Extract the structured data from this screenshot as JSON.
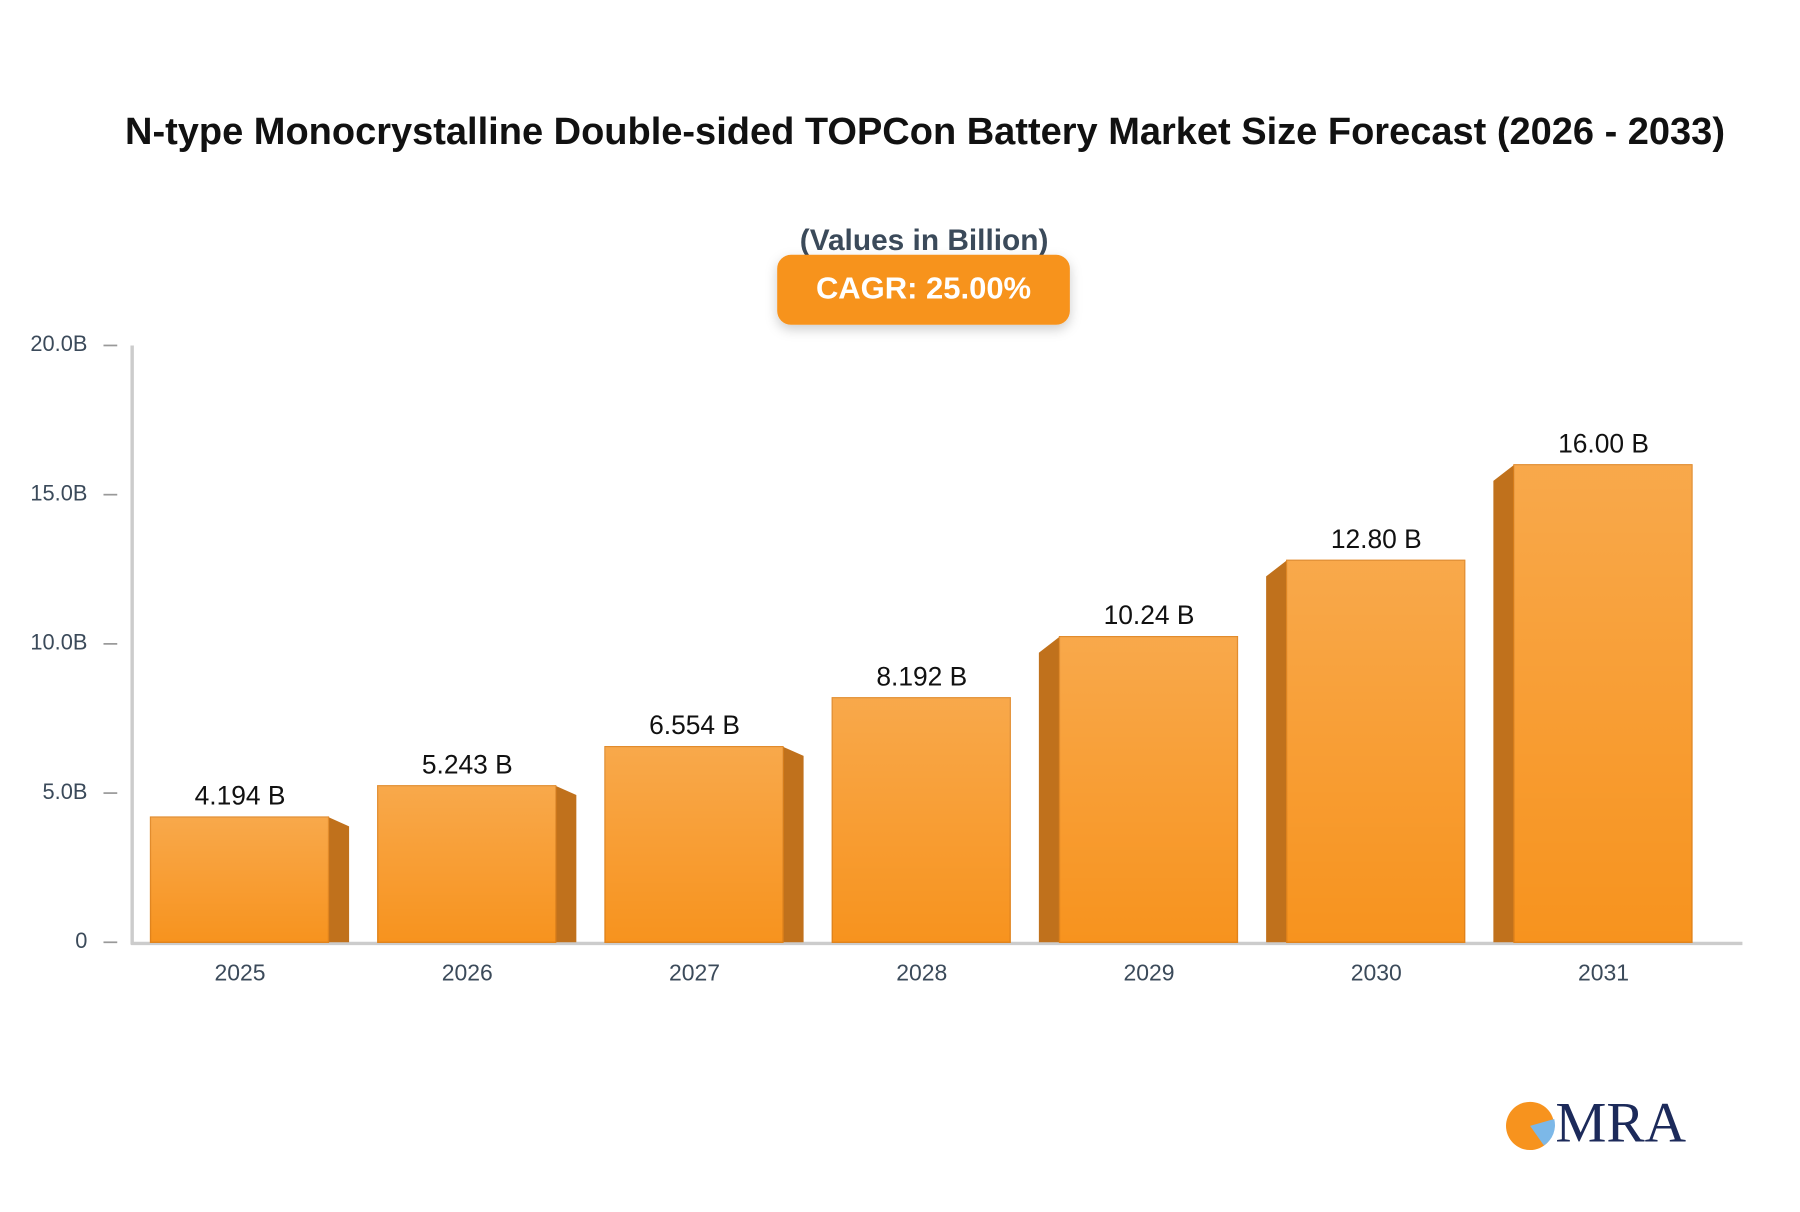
{
  "chart_data": {
    "type": "bar",
    "title": "N-type Monocrystalline Double-sided TOPCon Battery Market Size Forecast (2026 - 2033)",
    "subtitle": "(Values in Billion)",
    "annotation": "CAGR: 25.00%",
    "logo": "MRA",
    "categories": [
      "2025",
      "2026",
      "2027",
      "2028",
      "2029",
      "2030",
      "2031"
    ],
    "values": [
      4.194,
      5.243,
      6.554,
      8.192,
      10.24,
      12.8,
      16.0
    ],
    "value_labels": [
      "4.194 B",
      "5.243 B",
      "6.554 B",
      "8.192 B",
      "10.24 B",
      "12.80 B",
      "16.00 B"
    ],
    "color": "#f7931e",
    "ylim": [
      0,
      20
    ],
    "yticks": [
      0,
      {
        "value": 5,
        "label": "5.0B"
      },
      {
        "value": 10,
        "label": "10.0B"
      },
      {
        "value": 15,
        "label": "15.0B"
      },
      {
        "value": 20,
        "label": "20.0B"
      }
    ],
    "grid": false
  }
}
